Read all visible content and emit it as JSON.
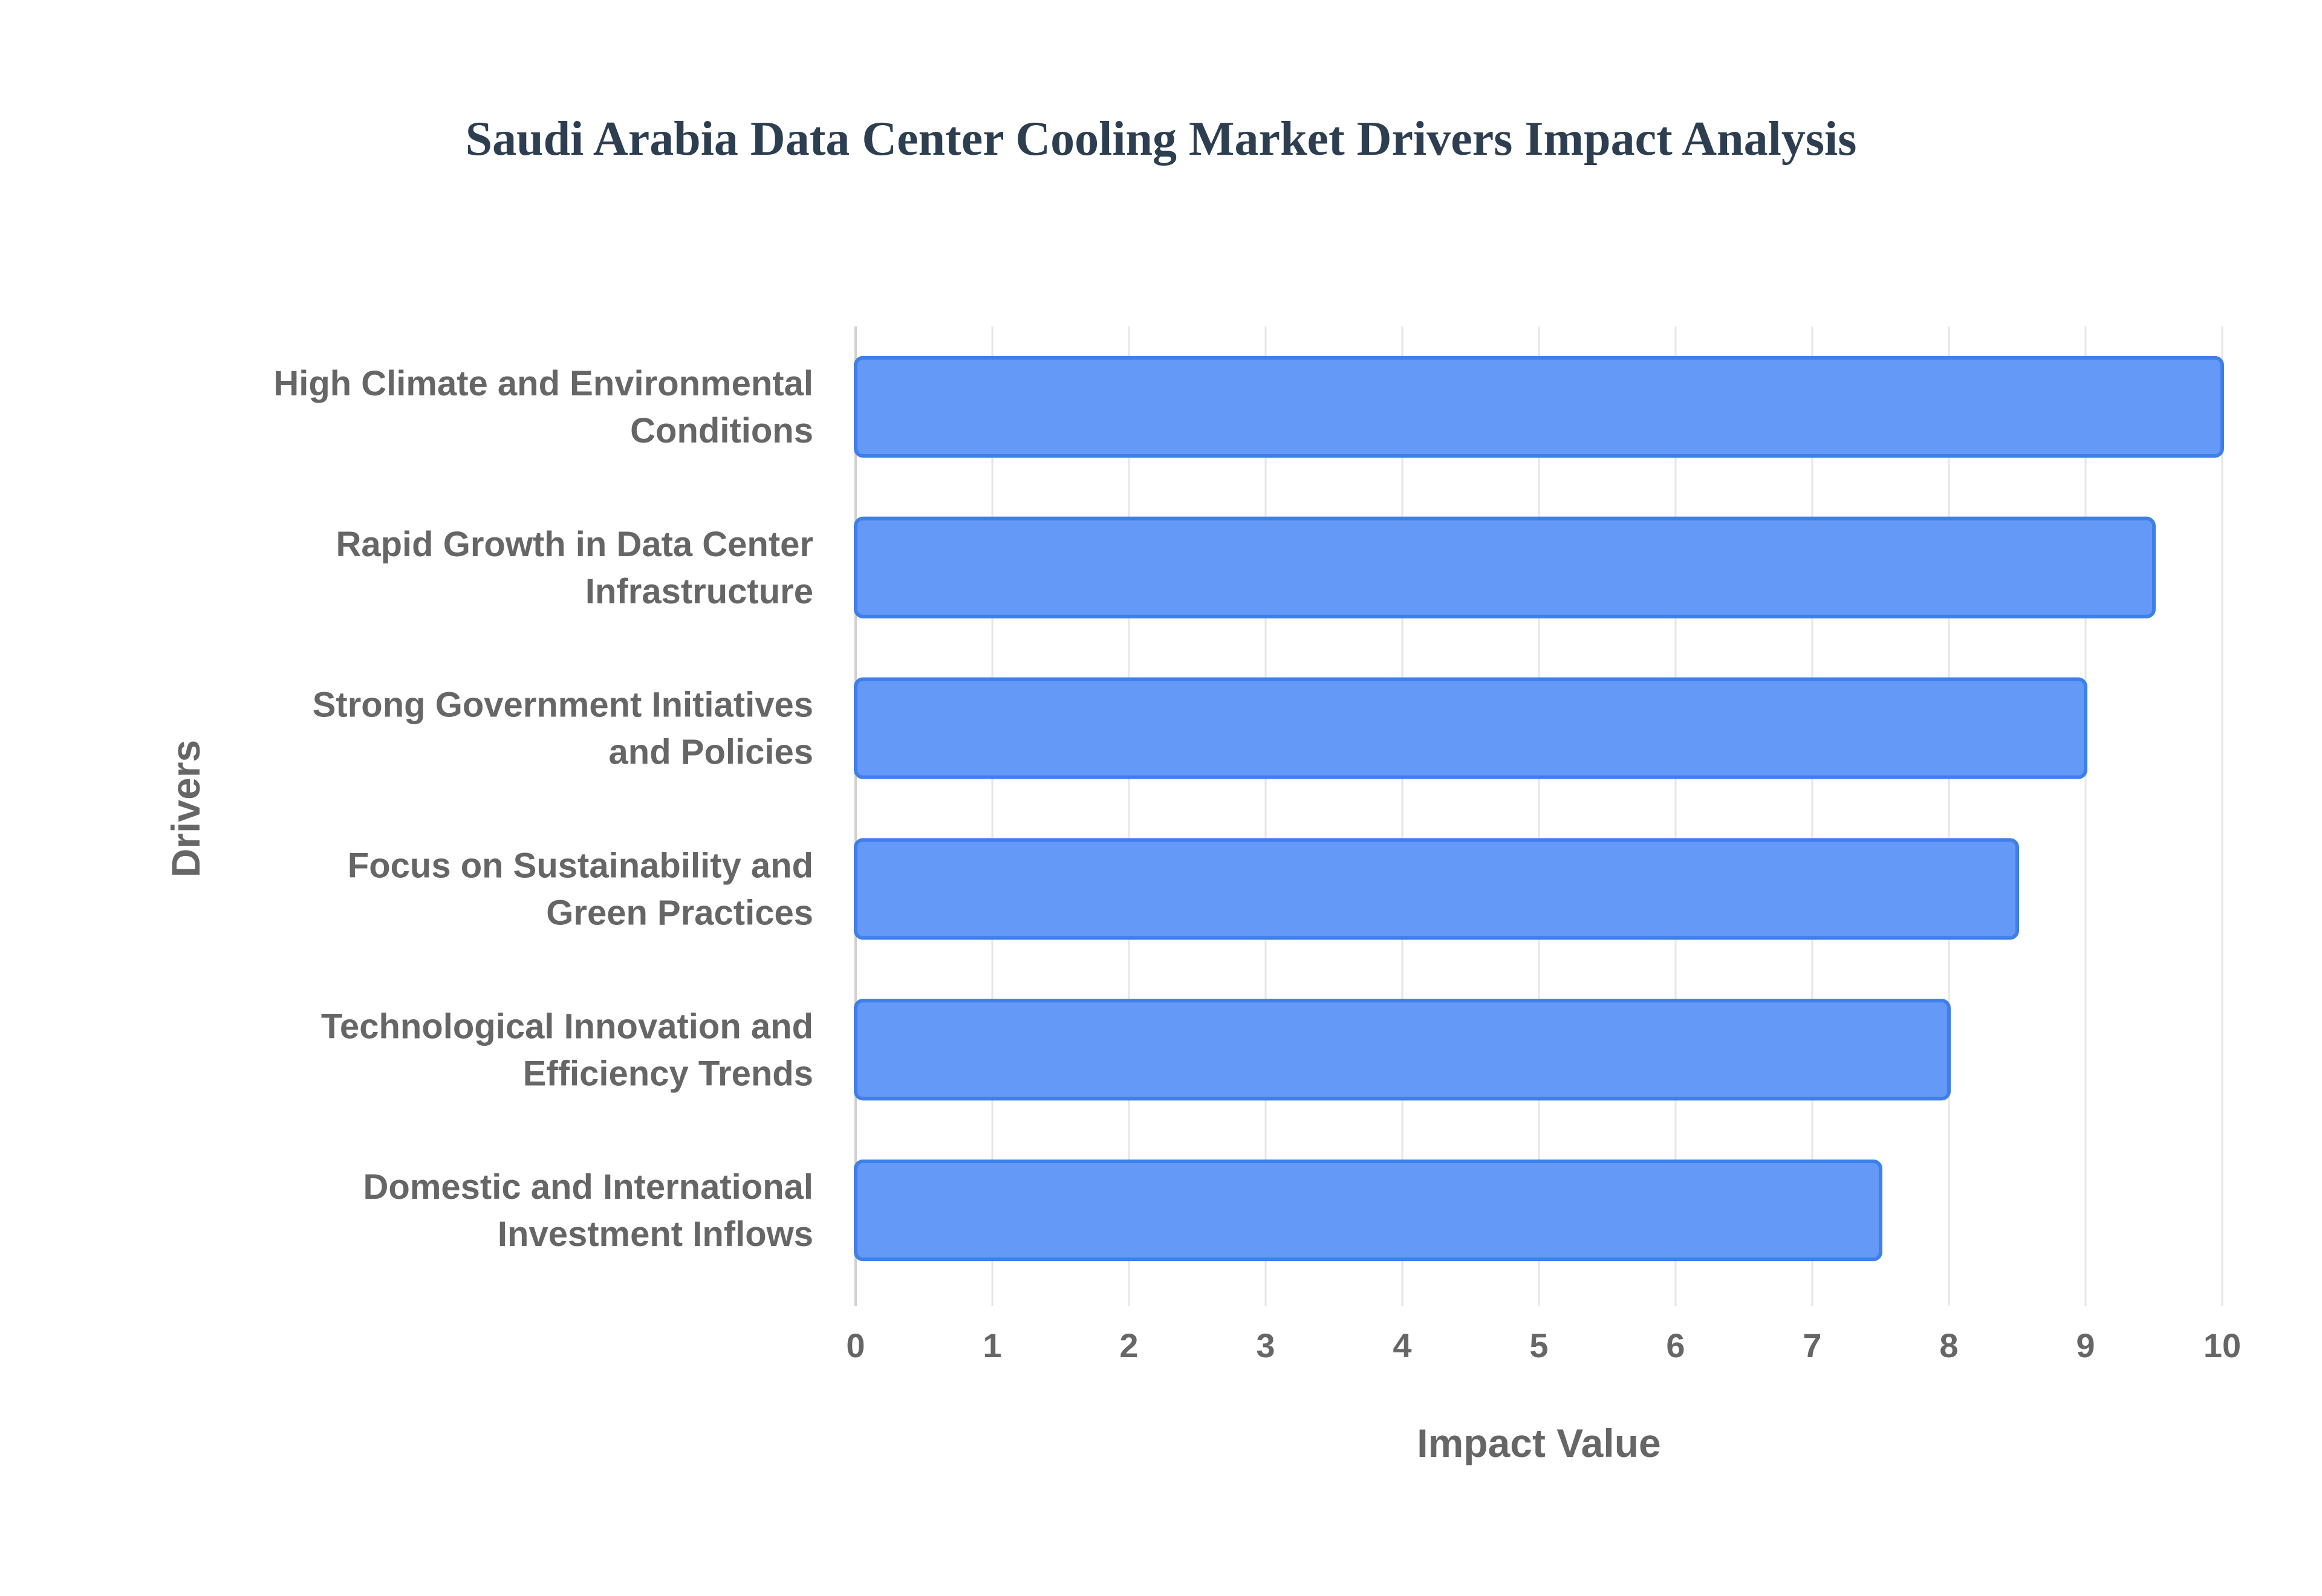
{
  "chart_data": {
    "type": "bar",
    "orientation": "horizontal",
    "title": "Saudi Arabia Data Center Cooling Market Drivers Impact Analysis",
    "xlabel": "Impact Value",
    "ylabel": "Drivers",
    "categories": [
      [
        "High Climate and Environmental",
        "Conditions"
      ],
      [
        "Rapid Growth in Data Center",
        "Infrastructure"
      ],
      [
        "Strong Government Initiatives",
        "and Policies"
      ],
      [
        "Focus on Sustainability and",
        "Green Practices"
      ],
      [
        "Technological Innovation and",
        "Efficiency Trends"
      ],
      [
        "Domestic and International",
        "Investment Inflows"
      ]
    ],
    "values": [
      10,
      9.5,
      9,
      8.5,
      8,
      7.5
    ],
    "xlim": [
      0,
      10
    ],
    "xticks": [
      "0",
      "1",
      "2",
      "3",
      "4",
      "5",
      "6",
      "7",
      "8",
      "9",
      "10"
    ],
    "grid": true,
    "legend": "none",
    "bar_color": "#6499f7",
    "bar_border_color": "#3f7fe8"
  }
}
